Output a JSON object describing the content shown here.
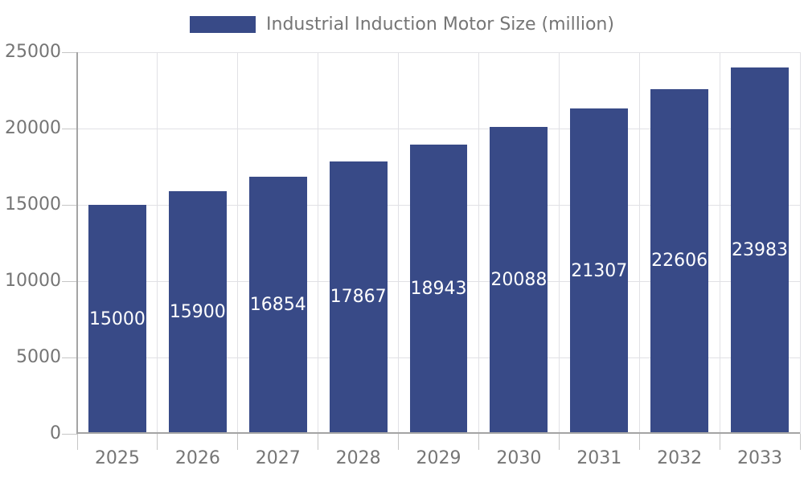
{
  "chart_data": {
    "type": "bar",
    "title": "",
    "legend": "Industrial Induction Motor Size (million)",
    "legend_position": "top-center",
    "categories": [
      "2025",
      "2026",
      "2027",
      "2028",
      "2029",
      "2030",
      "2031",
      "2032",
      "2033"
    ],
    "values": [
      15000,
      15900,
      16854,
      17867,
      18943,
      20088,
      21307,
      22606,
      23983
    ],
    "xlabel": "",
    "ylabel": "",
    "ylim": [
      0,
      25000
    ],
    "yticks": [
      0,
      5000,
      10000,
      15000,
      20000,
      25000
    ],
    "grid": "on",
    "value_labels": "inside-bar, white, centered",
    "colors": {
      "bar": "#384a87",
      "grid": "#e1e1e5",
      "axis": "#a4a4a4",
      "tick": "#c6c6c6",
      "axis_text": "#757575",
      "value_text": "#ffffff",
      "background": "#ffffff"
    }
  }
}
